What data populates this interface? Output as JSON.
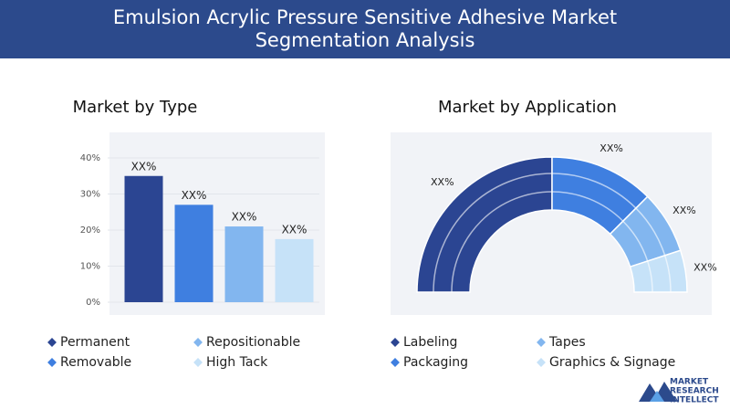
{
  "header": {
    "title": "Emulsion Acrylic Pressure Sensitive Adhesive Market Segmentation Analysis"
  },
  "chart_data": [
    {
      "type": "bar",
      "title": "Market by Type",
      "categories": [
        "Permanent",
        "Removable",
        "Repositionable",
        "High Tack"
      ],
      "values": [
        35,
        27,
        21,
        17.5
      ],
      "value_labels": [
        "XX%",
        "XX%",
        "XX%",
        "XX%"
      ],
      "colors": [
        "#2b4592",
        "#3f7fe0",
        "#82b6ef",
        "#c6e2f8"
      ],
      "ylim": [
        0,
        40
      ],
      "yticks": [
        {
          "value": 0,
          "label": "0%"
        },
        {
          "value": 10,
          "label": "10%"
        },
        {
          "value": 20,
          "label": "20%"
        },
        {
          "value": 30,
          "label": "30%"
        },
        {
          "value": 40,
          "label": "40%"
        }
      ],
      "grid": true
    },
    {
      "type": "semi-donut",
      "title": "Market by Application",
      "categories": [
        "Labeling",
        "Packaging",
        "Tapes",
        "Graphics & Signage"
      ],
      "values": [
        50,
        25,
        15,
        10
      ],
      "value_labels": [
        "XX%",
        "XX%",
        "XX%",
        "XX%"
      ],
      "colors": [
        "#2b4592",
        "#3f7fe0",
        "#82b6ef",
        "#c6e2f8"
      ]
    }
  ],
  "logo": {
    "lines": [
      "MARKET",
      "RESEARCH",
      "INTELLECT"
    ]
  }
}
